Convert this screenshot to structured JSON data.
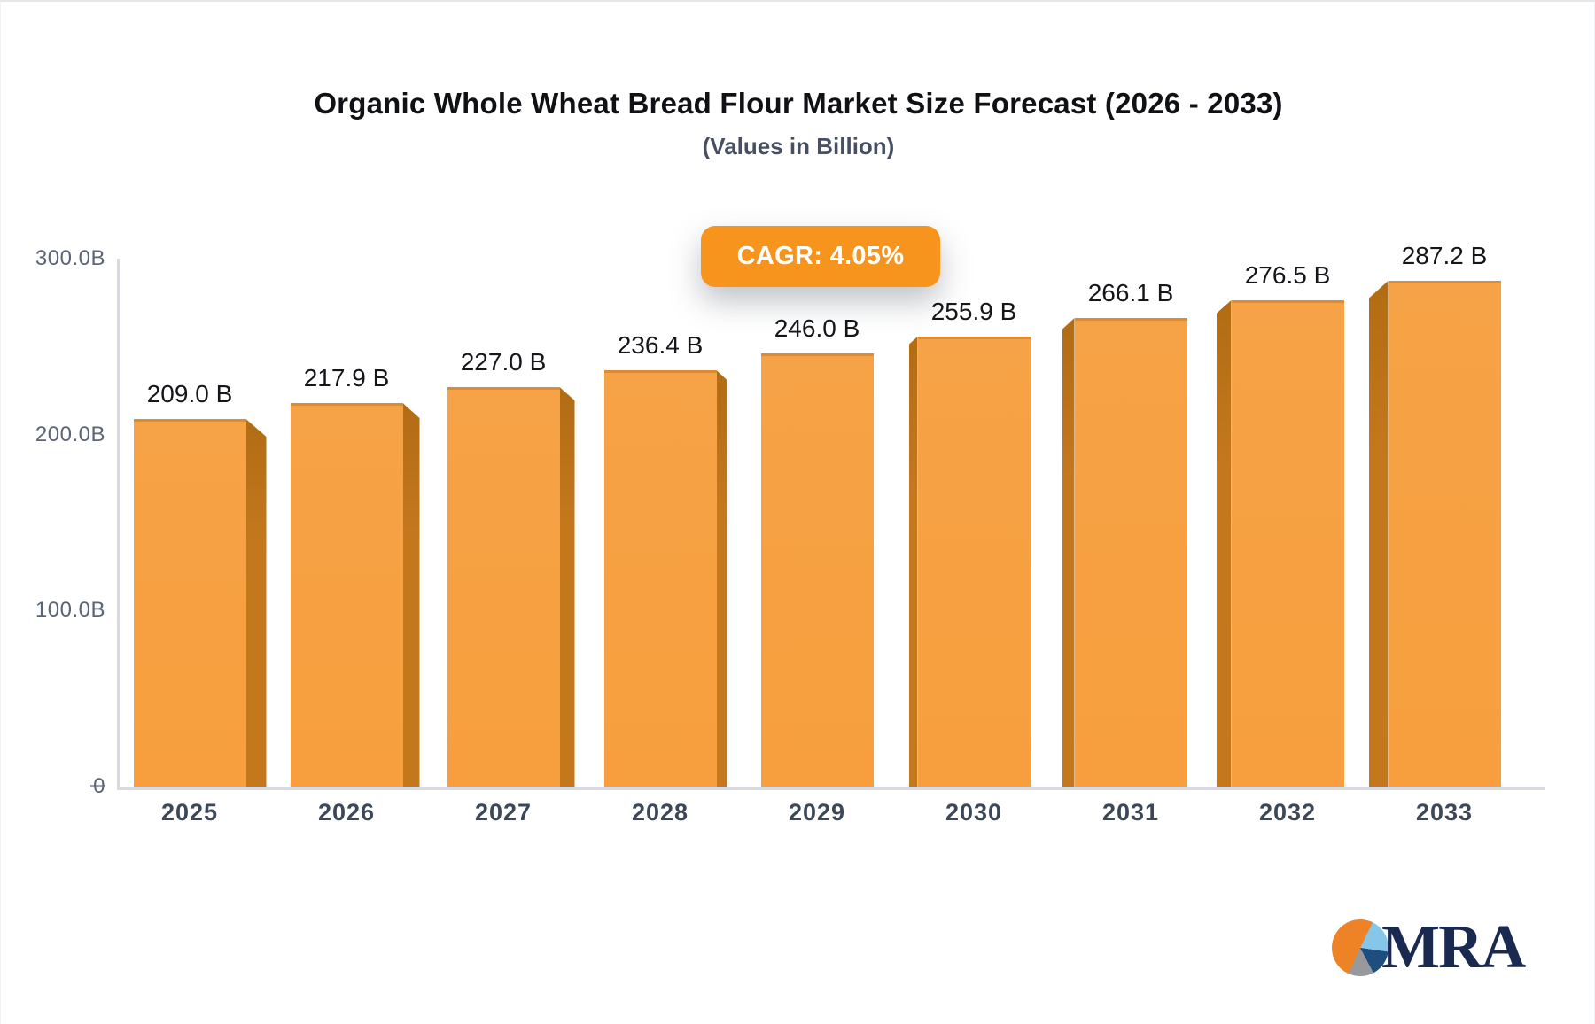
{
  "header": {
    "title": "Organic Whole Wheat Bread Flour Market Size Forecast (2026 - 2033)",
    "subtitle": "(Values in Billion)"
  },
  "badge": {
    "label": "CAGR: 4.05%",
    "bg": "#F7941E"
  },
  "chart_data": {
    "type": "bar",
    "title": "Organic Whole Wheat Bread Flour Market Size Forecast (2026 - 2033)",
    "subtitle": "(Values in Billion)",
    "annotation": "CAGR: 4.05%",
    "categories": [
      "2025",
      "2026",
      "2027",
      "2028",
      "2029",
      "2030",
      "2031",
      "2032",
      "2033"
    ],
    "values": [
      209.0,
      217.9,
      227.0,
      236.4,
      246.0,
      255.9,
      266.1,
      276.5,
      287.2
    ],
    "value_labels": [
      "209.0 B",
      "217.9 B",
      "227.0 B",
      "236.4 B",
      "246.0 B",
      "255.9 B",
      "266.1 B",
      "276.5 B",
      "287.2 B"
    ],
    "ylim": [
      0,
      300
    ],
    "y_tick_labels": [
      "300.0B",
      "200.0B",
      "100.0B",
      "0"
    ],
    "y_tick_values": [
      300,
      200,
      100,
      0
    ],
    "grid": false,
    "legend": "none",
    "bar_face_color": "#F7A041",
    "bar_side_color": "#C0751C",
    "axis_color": "#D8DADF"
  },
  "logo": {
    "text": "MRA",
    "pie_colors": {
      "orange": "#EE8325",
      "blue": "#85C6E9",
      "navy": "#1D4E7E",
      "gray": "#97999C"
    }
  }
}
